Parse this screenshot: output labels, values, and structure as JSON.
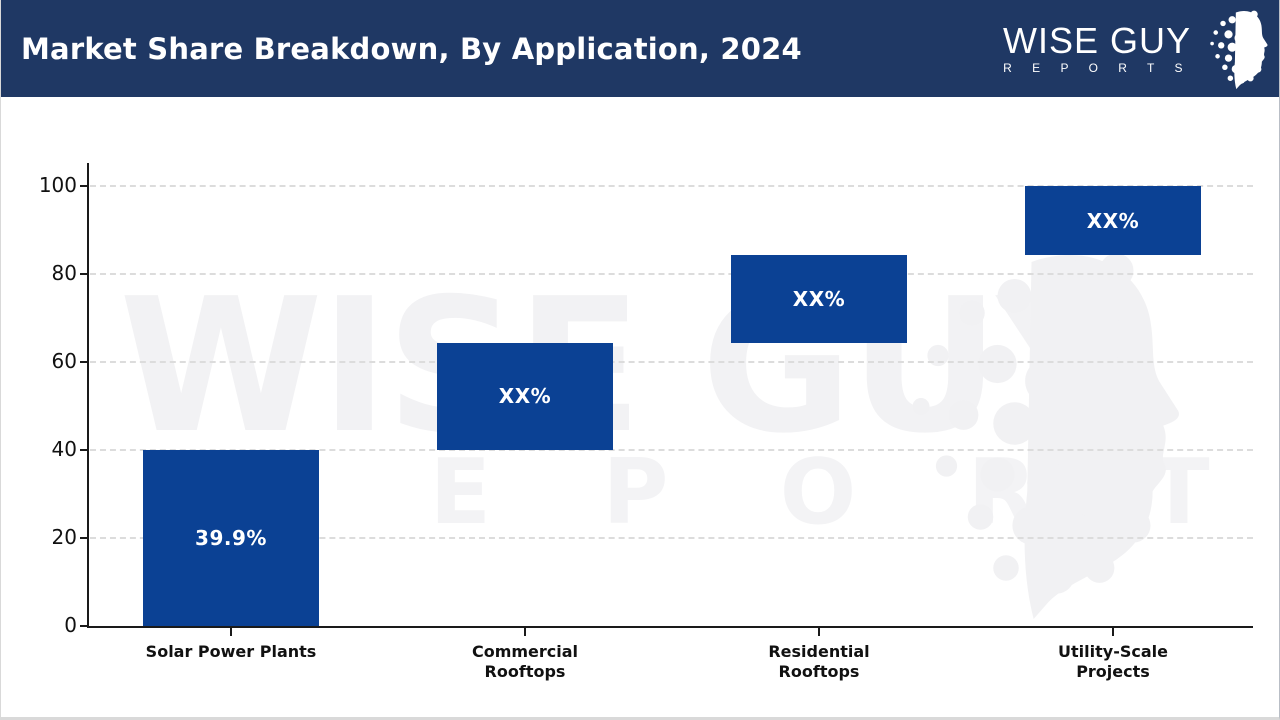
{
  "header": {
    "title": "Market Share Breakdown, By Application, 2024",
    "bg_color": "#1f3864",
    "logo": {
      "line1": "WISE GUY",
      "line2": "REPORTS"
    }
  },
  "watermark": {
    "line1": "WISE GUY",
    "line2": "REPORTS"
  },
  "chart_data": {
    "type": "bar",
    "subtype": "waterfall",
    "title": "Market Share Breakdown, By Application, 2024",
    "categories": [
      "Solar Power Plants",
      "Commercial\nRooftops",
      "Residential\nRooftops",
      "Utility-Scale\nProjects"
    ],
    "segments": [
      {
        "category": "Solar Power Plants",
        "label": "39.9%",
        "start": 0,
        "end": 40,
        "value_pct": 39.9
      },
      {
        "category": "Commercial Rooftops",
        "label": "XX%",
        "start": 40,
        "end": 64.4,
        "value_pct": null
      },
      {
        "category": "Residential Rooftops",
        "label": "XX%",
        "start": 64.4,
        "end": 84.3,
        "value_pct": null
      },
      {
        "category": "Utility-Scale Projects",
        "label": "XX%",
        "start": 84.3,
        "end": 100,
        "value_pct": null
      }
    ],
    "yticks": [
      0,
      20,
      40,
      60,
      80,
      100
    ],
    "ylim": [
      0,
      105
    ],
    "xlabel": "",
    "ylabel": "",
    "bar_color": "#0b4194",
    "grid": "dashed-horizontal",
    "legend": "none"
  }
}
